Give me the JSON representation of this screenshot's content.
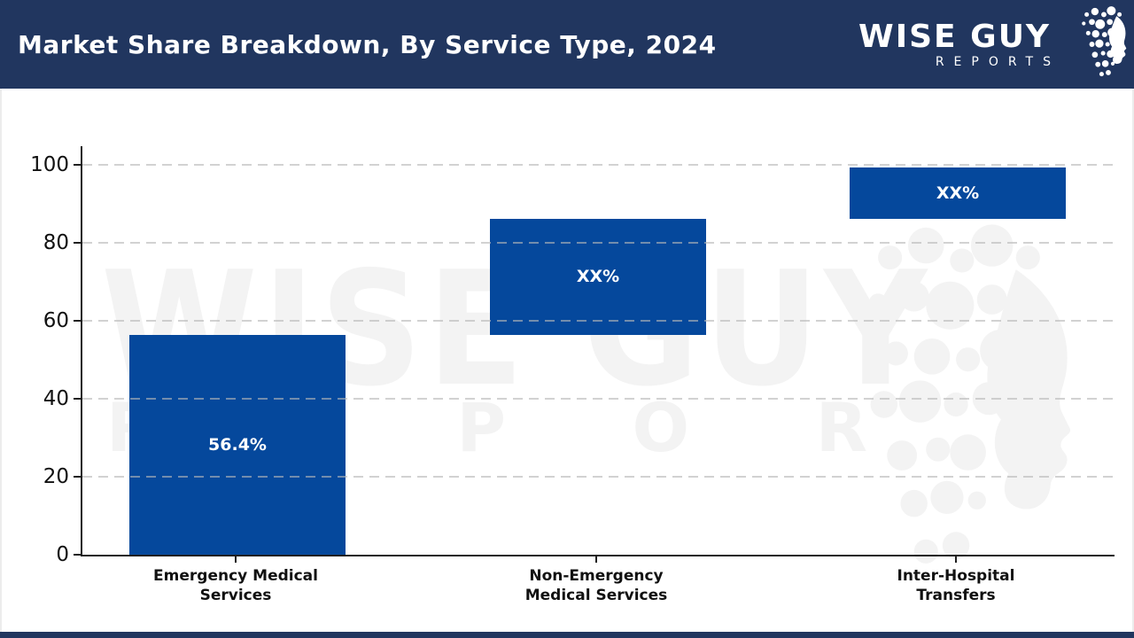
{
  "header": {
    "title": "Market Share Breakdown, By Service Type, 2024",
    "background_color": "#21365f",
    "logo": {
      "line1": "WISE GUY",
      "line2": "REPORTS"
    }
  },
  "watermark": {
    "line1": "WISE GUY",
    "line2": "R E P O R T S"
  },
  "chart_data": {
    "type": "bar",
    "subtype": "waterfall",
    "title": "Market Share Breakdown, By Service Type, 2024",
    "categories": [
      {
        "line1": "Emergency Medical",
        "line2": "Services"
      },
      {
        "line1": "Non-Emergency",
        "line2": "Medical Services"
      },
      {
        "line1": "Inter-Hospital",
        "line2": "Transfers"
      }
    ],
    "segments": [
      {
        "category": "Emergency Medical Services",
        "start": 0,
        "end": 56.4,
        "value": 56.4,
        "label": "56.4%"
      },
      {
        "category": "Non-Emergency Medical Services",
        "start": 56.4,
        "end": 86.1,
        "value": 29.7,
        "label": "XX%"
      },
      {
        "category": "Inter-Hospital Transfers",
        "start": 86.1,
        "end": 99.4,
        "value": 13.3,
        "label": "XX%"
      }
    ],
    "xlabel": "",
    "ylabel": "",
    "ylim": [
      0,
      105
    ],
    "yticks": [
      0,
      20,
      40,
      60,
      80,
      100
    ],
    "grid": "horizontal dashed, drawn over bars",
    "legend": "none",
    "bar_color": "#05489c",
    "bar_label_color": "#ffffff",
    "axis_color": "#1f1f1f",
    "gridline_color": "#cfcfcf",
    "watermark_color": "#f3f3f3"
  }
}
